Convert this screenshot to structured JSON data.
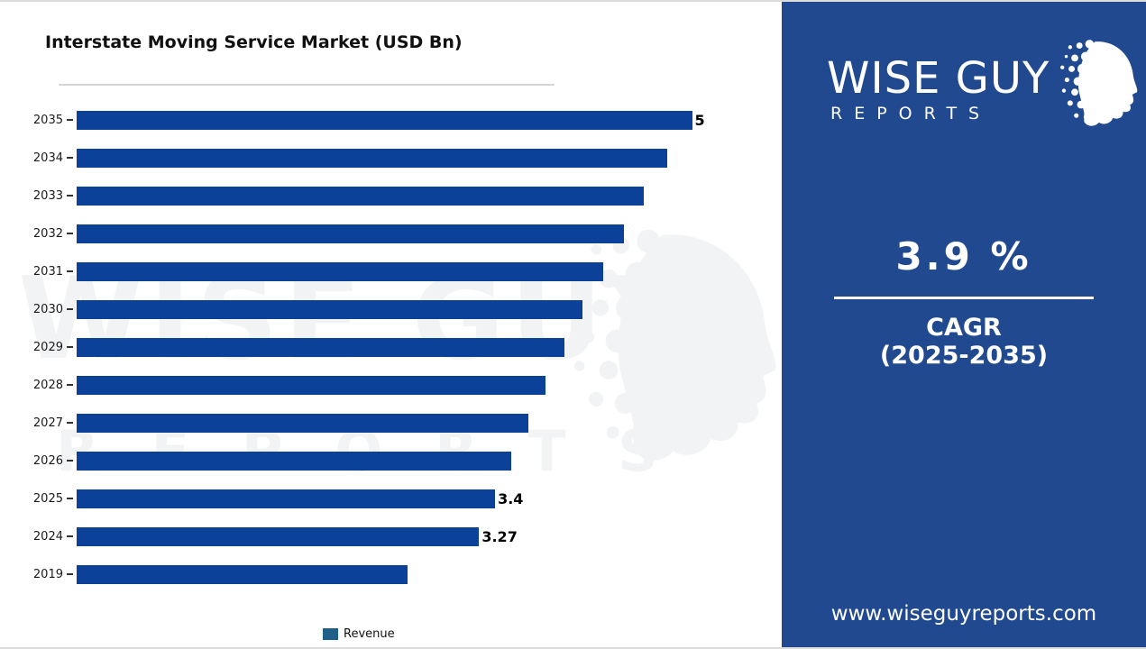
{
  "chart_data": {
    "type": "bar",
    "orientation": "horizontal",
    "title": "Interstate Moving Service Market (USD Bn)",
    "categories": [
      "2035",
      "2034",
      "2033",
      "2032",
      "2031",
      "2030",
      "2029",
      "2028",
      "2027",
      "2026",
      "2025",
      "2024",
      "2019"
    ],
    "values": [
      5,
      4.8,
      4.61,
      4.45,
      4.28,
      4.11,
      3.96,
      3.81,
      3.67,
      3.53,
      3.4,
      3.27,
      2.69
    ],
    "bar_labels": [
      "5",
      "",
      "",
      "",
      "",
      "",
      "",
      "",
      "",
      "",
      "3.4",
      "3.27",
      ""
    ],
    "series_name": "Revenue",
    "xlabel": "",
    "ylabel": "",
    "xlim": [
      0,
      5.73
    ],
    "grid": false,
    "legend_position": "bottom-center",
    "bar_color": "#0C419A",
    "legend_swatch_color": "#1F6088"
  },
  "watermark": {
    "line1": "WISE GUY",
    "line2": "REPORTS"
  },
  "sidebar": {
    "background_color": "#21498F",
    "logo_line1": "WISE GUY",
    "logo_line2": "REPORTS",
    "cagr_value": "3.9 %",
    "cagr_label": "CAGR",
    "cagr_range": "(2025-2035)",
    "website": "www.wiseguyreports.com"
  }
}
